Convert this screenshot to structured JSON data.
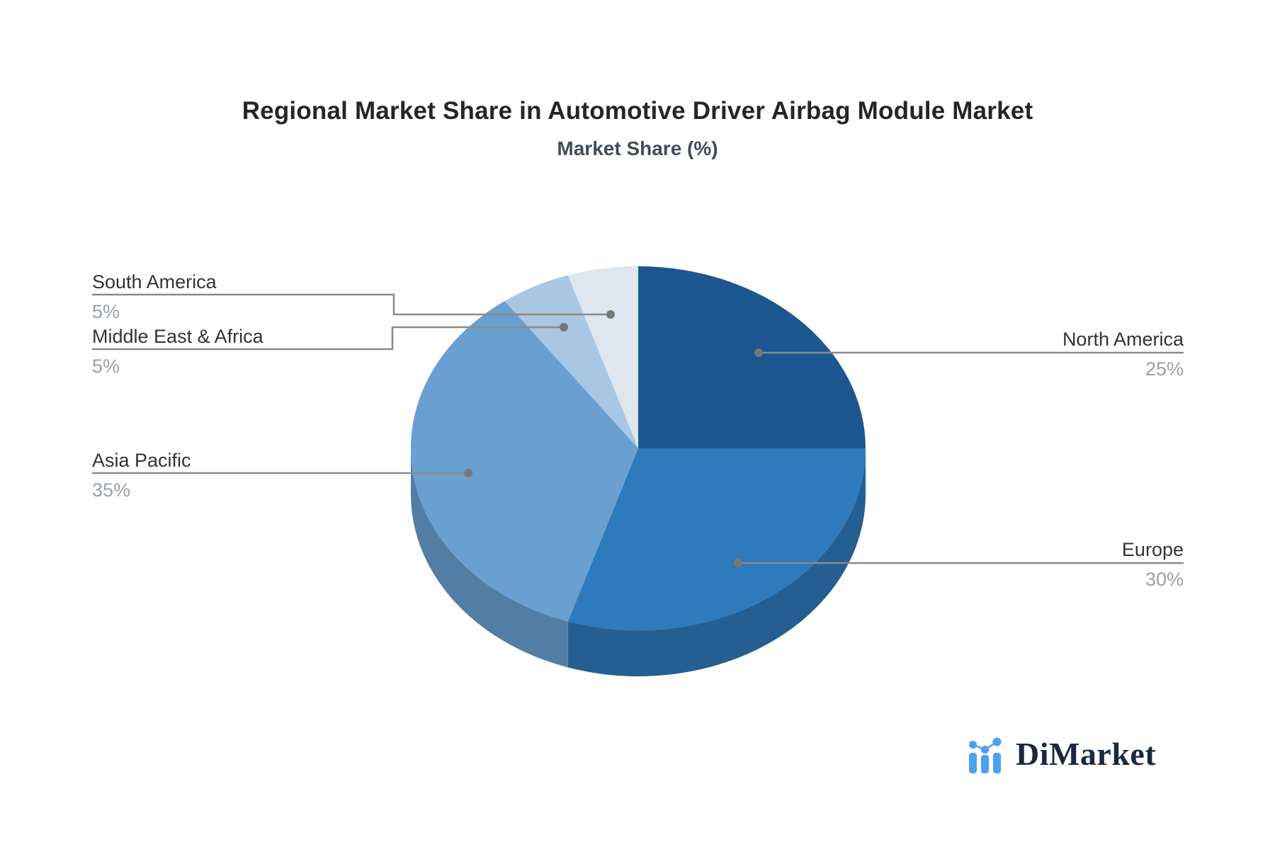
{
  "header": {
    "title": "Regional Market Share in Automotive Driver Airbag Module Market",
    "subtitle": "Market Share (%)"
  },
  "chart_data": {
    "type": "pie",
    "title": "Regional Market Share in Automotive Driver Airbag Module Market",
    "subtitle": "Market Share (%)",
    "unit": "%",
    "start_angle_deg": 0,
    "direction": "clockwise",
    "effect": "3d-depth",
    "legend_position": "callouts",
    "slices": [
      {
        "label": "North America",
        "value": 25,
        "value_text": "25%",
        "color": "#1d5791",
        "rim_color": "#174771"
      },
      {
        "label": "Europe",
        "value": 30,
        "value_text": "30%",
        "color": "#2d7abc",
        "rim_color": "#255f92"
      },
      {
        "label": "Asia Pacific",
        "value": 35,
        "value_text": "35%",
        "color": "#699fd1",
        "rim_color": "#527ea6"
      },
      {
        "label": "Middle East & Africa",
        "value": 5,
        "value_text": "5%",
        "color": "#a9c6e2",
        "rim_color": "#8ba3bd"
      },
      {
        "label": "South America",
        "value": 5,
        "value_text": "5%",
        "color": "#dfe6ef",
        "rim_color": "#b8bfc9"
      }
    ],
    "styles": {
      "label_color": "#333333",
      "percent_color": "#9aa0a6",
      "line_color": "#8a8a8a",
      "dot_color": "#777777",
      "background": "#ffffff"
    }
  },
  "logo": {
    "text": "DiMarket",
    "icon": "bar-chart-logo-icon",
    "icon_color": "#4aa0f2",
    "text_color": "#1a2940"
  }
}
